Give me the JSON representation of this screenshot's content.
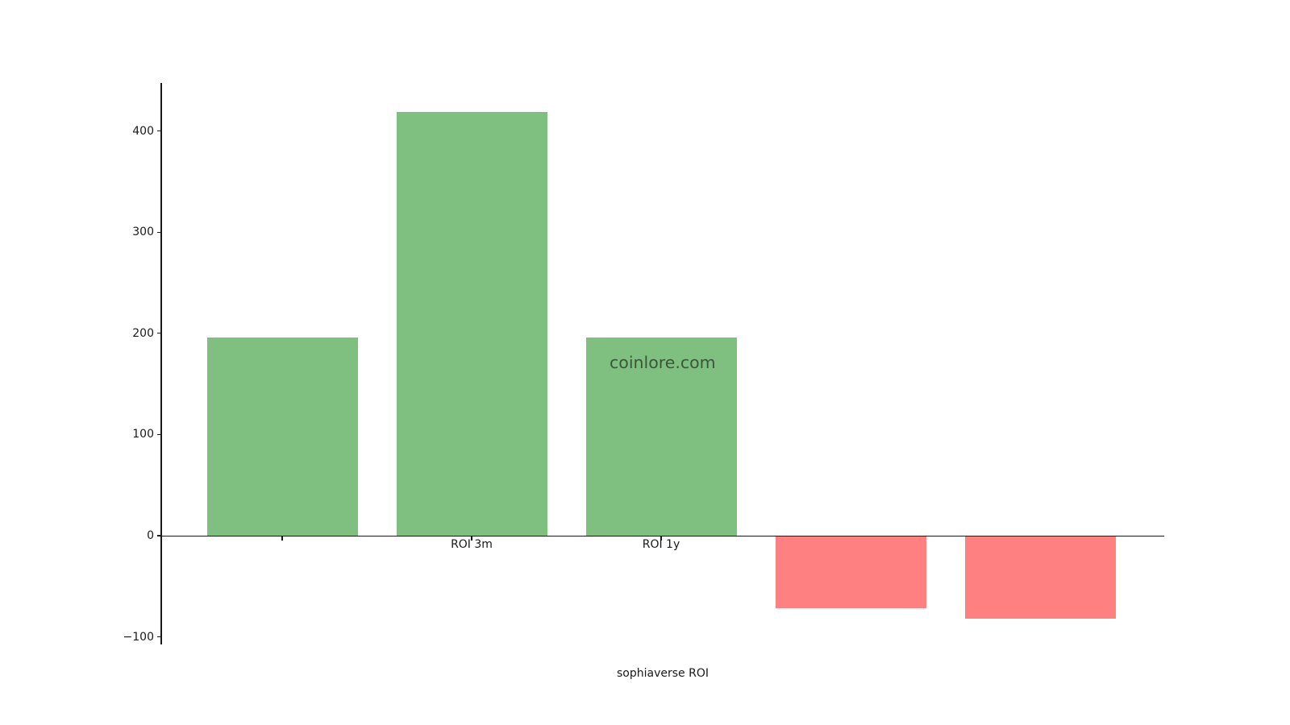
{
  "watermark": "coinlore.com",
  "chart_data": {
    "type": "bar",
    "title": "",
    "xlabel": "sophiaverse ROI",
    "ylabel": "",
    "categories": [
      "",
      "ROI 3m",
      "ROI 1y",
      "",
      ""
    ],
    "values": [
      196,
      419,
      196,
      -72,
      -82
    ],
    "bar_colors": [
      "#7fbf7f",
      "#7fbf7f",
      "#7fbf7f",
      "#ff8080",
      "#ff8080"
    ],
    "positive_color": "#7fbf7f",
    "negative_color": "#ff8080",
    "y_ticks": [
      400,
      300,
      200,
      100,
      0,
      -100
    ],
    "ylim": [
      -108,
      448
    ],
    "grid": false,
    "legend_position": "none"
  }
}
